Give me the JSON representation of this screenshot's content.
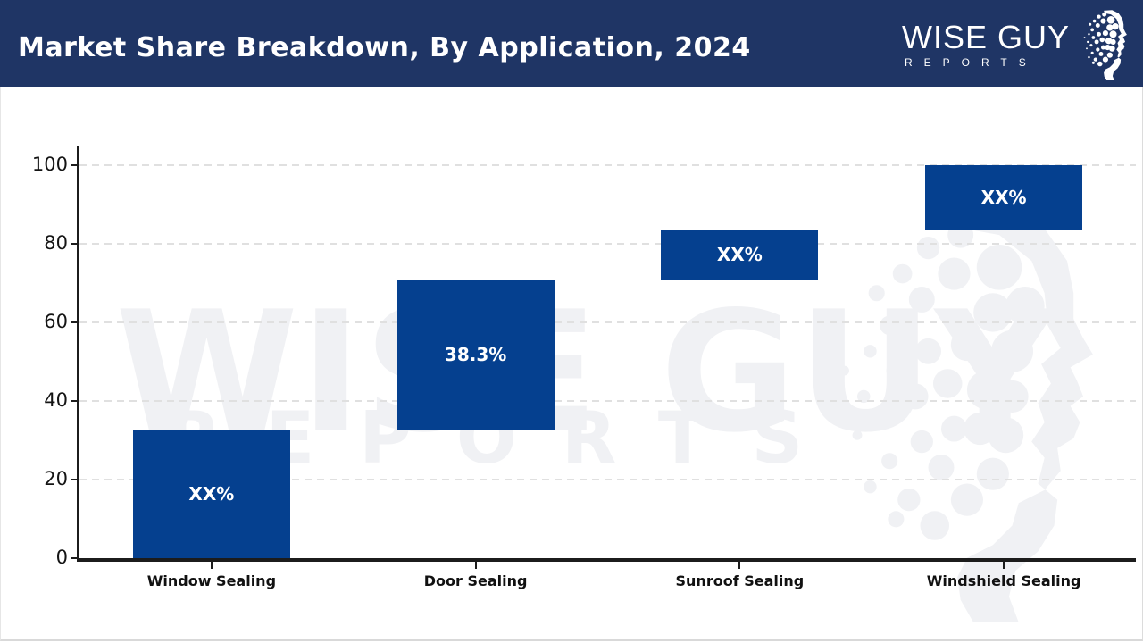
{
  "header": {
    "title": "Market Share Breakdown, By Application, 2024",
    "bg_color": "#1f3565",
    "logo": {
      "line1": "WISE GUY",
      "line2": "REPORTS"
    }
  },
  "watermark": {
    "line1": "WISE GUY",
    "line2": "REPORTS"
  },
  "chart_data": {
    "type": "bar",
    "subtype": "waterfall",
    "title": "",
    "xlabel": "",
    "ylabel": "",
    "categories": [
      "Window Sealing",
      "Door Sealing",
      "Sunroof Sealing",
      "Windshield Sealing"
    ],
    "series": [
      {
        "name": "Market Share (%)",
        "segments": [
          {
            "category": "Window Sealing",
            "base": 0,
            "top": 32.7,
            "value_label": "XX%"
          },
          {
            "category": "Door Sealing",
            "base": 32.7,
            "top": 71.0,
            "value_label": "38.3%"
          },
          {
            "category": "Sunroof Sealing",
            "base": 71.0,
            "top": 83.7,
            "value_label": "XX%"
          },
          {
            "category": "Windshield Sealing",
            "base": 83.7,
            "top": 100.0,
            "value_label": "XX%"
          }
        ]
      }
    ],
    "yticks": [
      0,
      20,
      40,
      60,
      80,
      100
    ],
    "ylim": [
      0,
      105
    ],
    "grid": true,
    "grid_style": "dashed",
    "legend": "none",
    "bar_color": "#05408f",
    "bar_label_color": "#ffffff",
    "axis_color": "#1c1c1c",
    "grid_color": "#e0e0e0",
    "watermark_color": "#f0f1f4"
  }
}
